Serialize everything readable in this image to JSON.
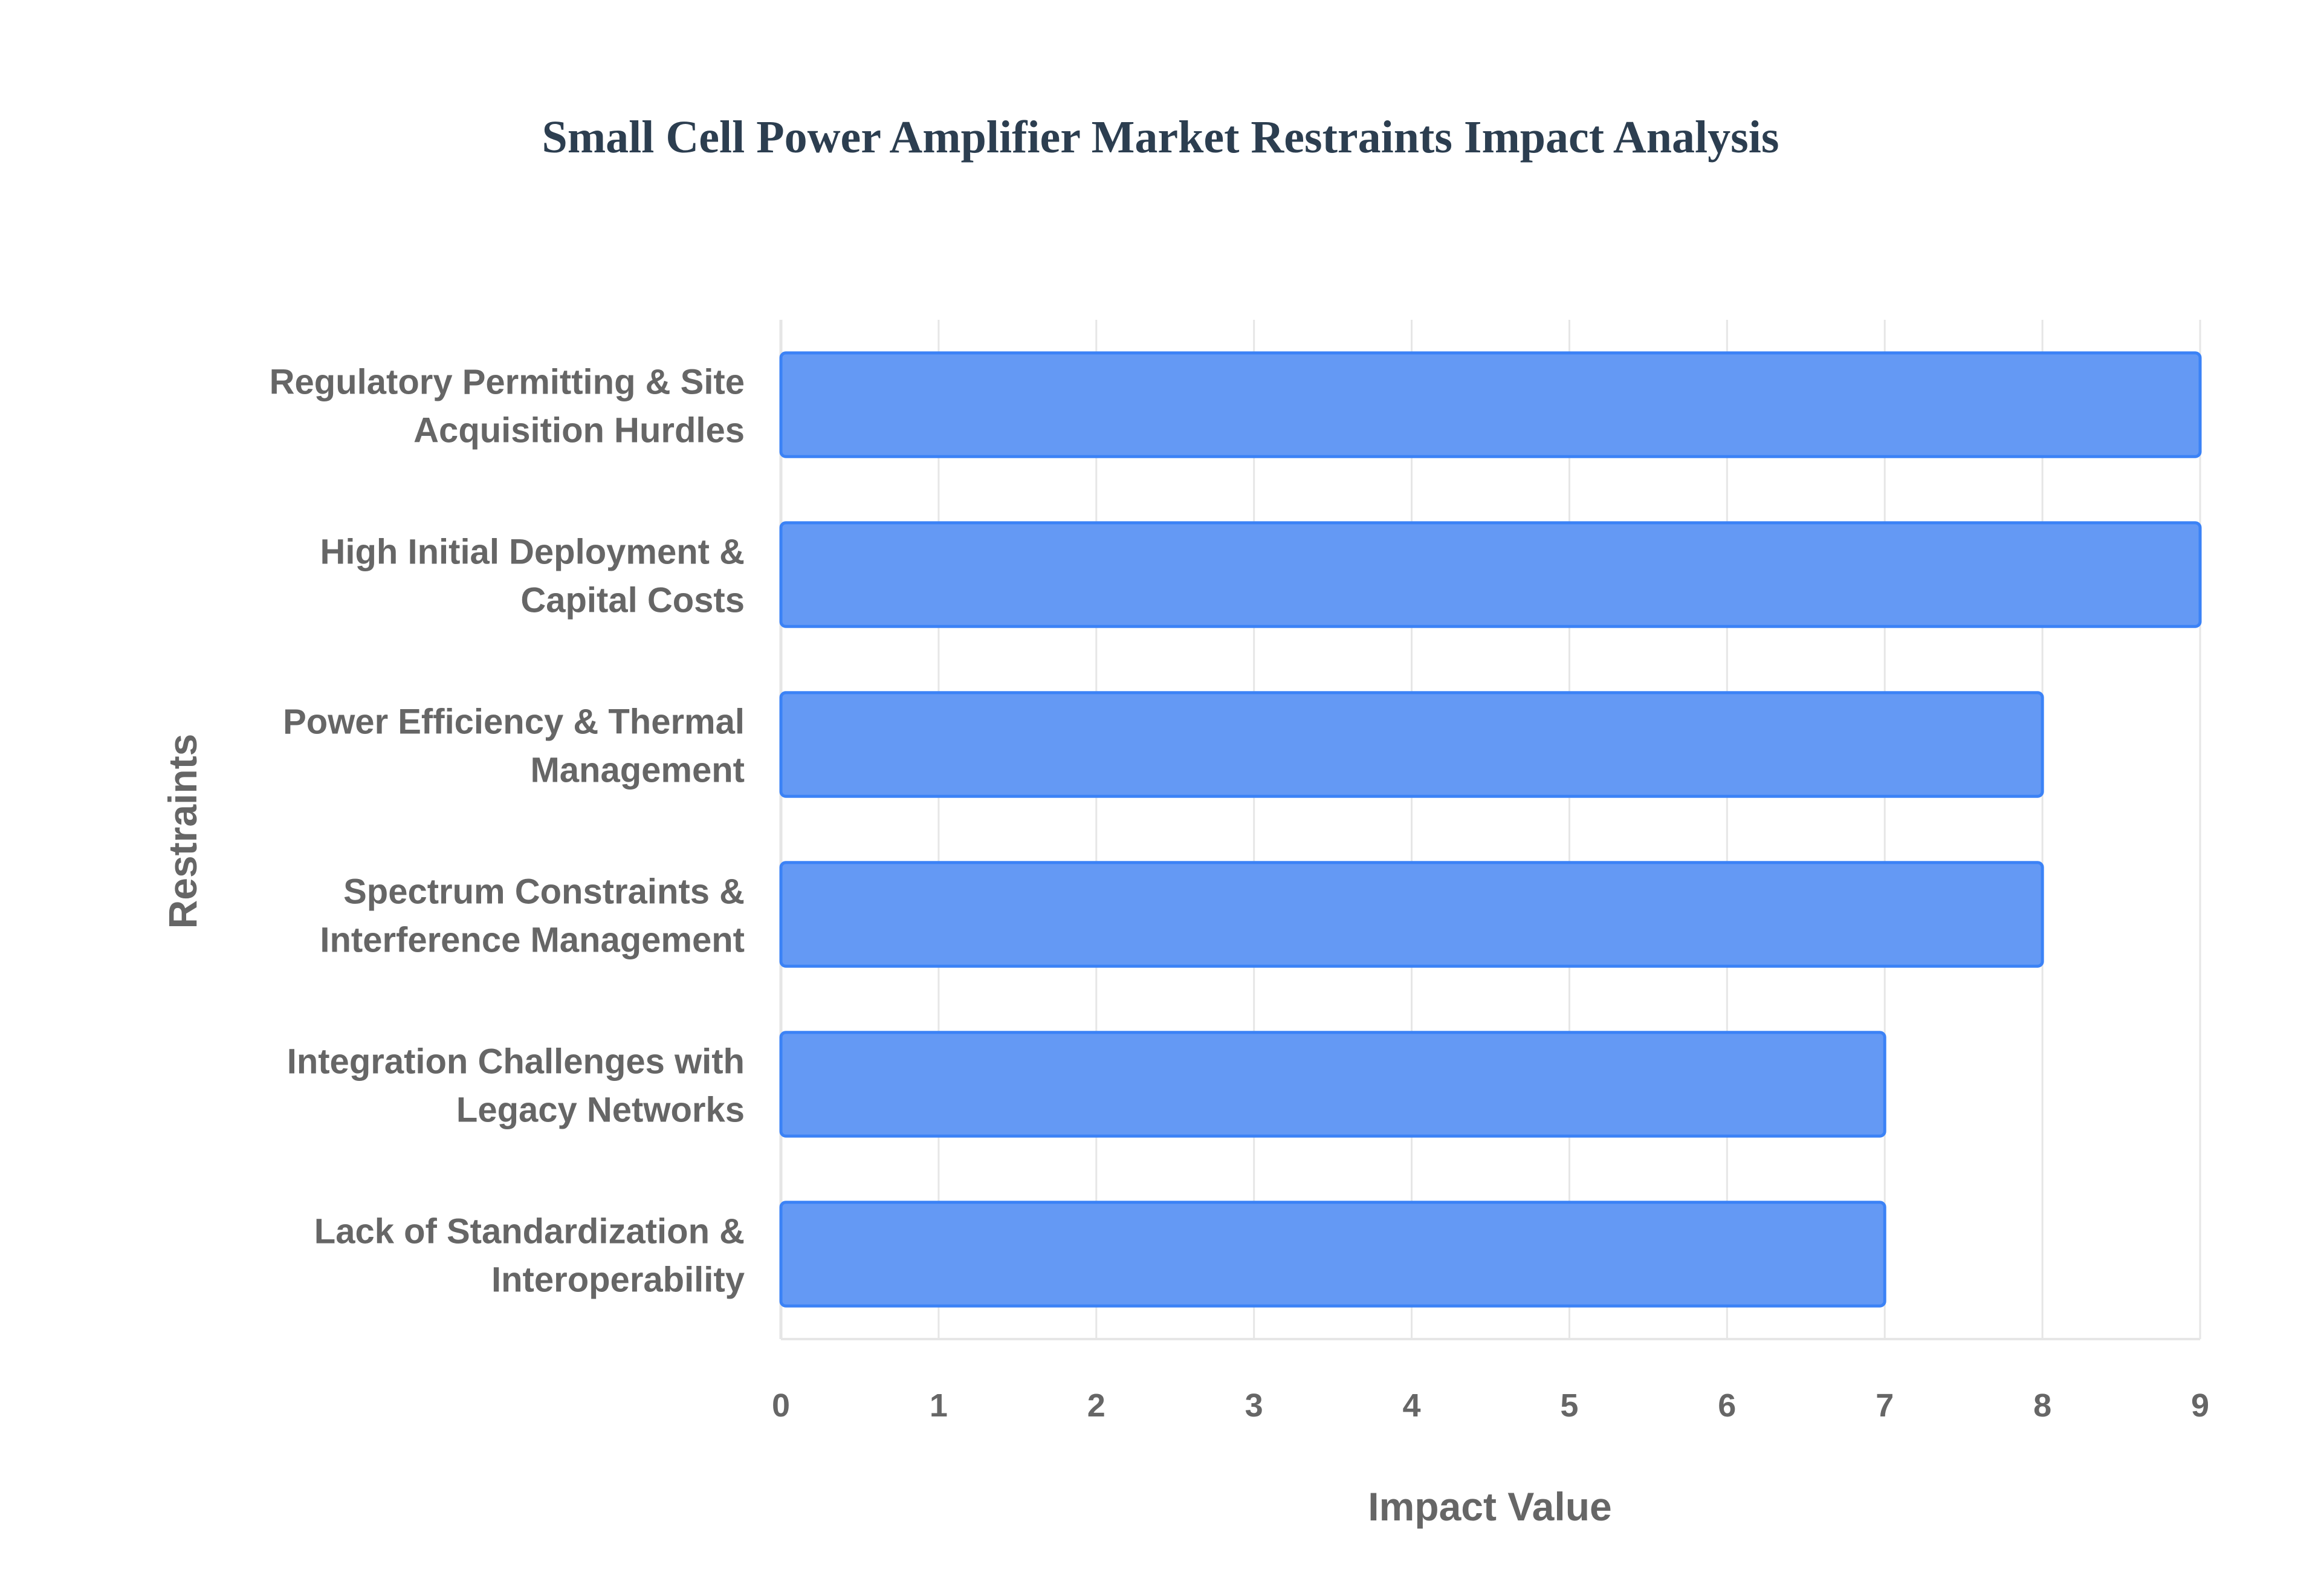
{
  "chart_data": {
    "type": "bar",
    "orientation": "horizontal",
    "title": "Small Cell Power Amplifier Market Restraints Impact Analysis",
    "xlabel": "Impact Value",
    "ylabel": "Restraints",
    "xlim": [
      0,
      9
    ],
    "xticks": [
      "0",
      "1",
      "2",
      "3",
      "4",
      "5",
      "6",
      "7",
      "8",
      "9"
    ],
    "grid": true,
    "categories": [
      [
        "Regulatory Permitting & Site",
        "Acquisition Hurdles"
      ],
      [
        "High Initial Deployment &",
        "Capital Costs"
      ],
      [
        "Power Efficiency & Thermal",
        "Management"
      ],
      [
        "Spectrum Constraints &",
        "Interference Management"
      ],
      [
        "Integration Challenges with",
        "Legacy Networks"
      ],
      [
        "Lack of Standardization &",
        "Interoperability"
      ]
    ],
    "values": [
      9,
      9,
      8,
      8,
      7,
      7
    ],
    "colors": {
      "fill": "#6499f4",
      "stroke": "#3b82f6",
      "grid": "#e6e6e6"
    }
  }
}
